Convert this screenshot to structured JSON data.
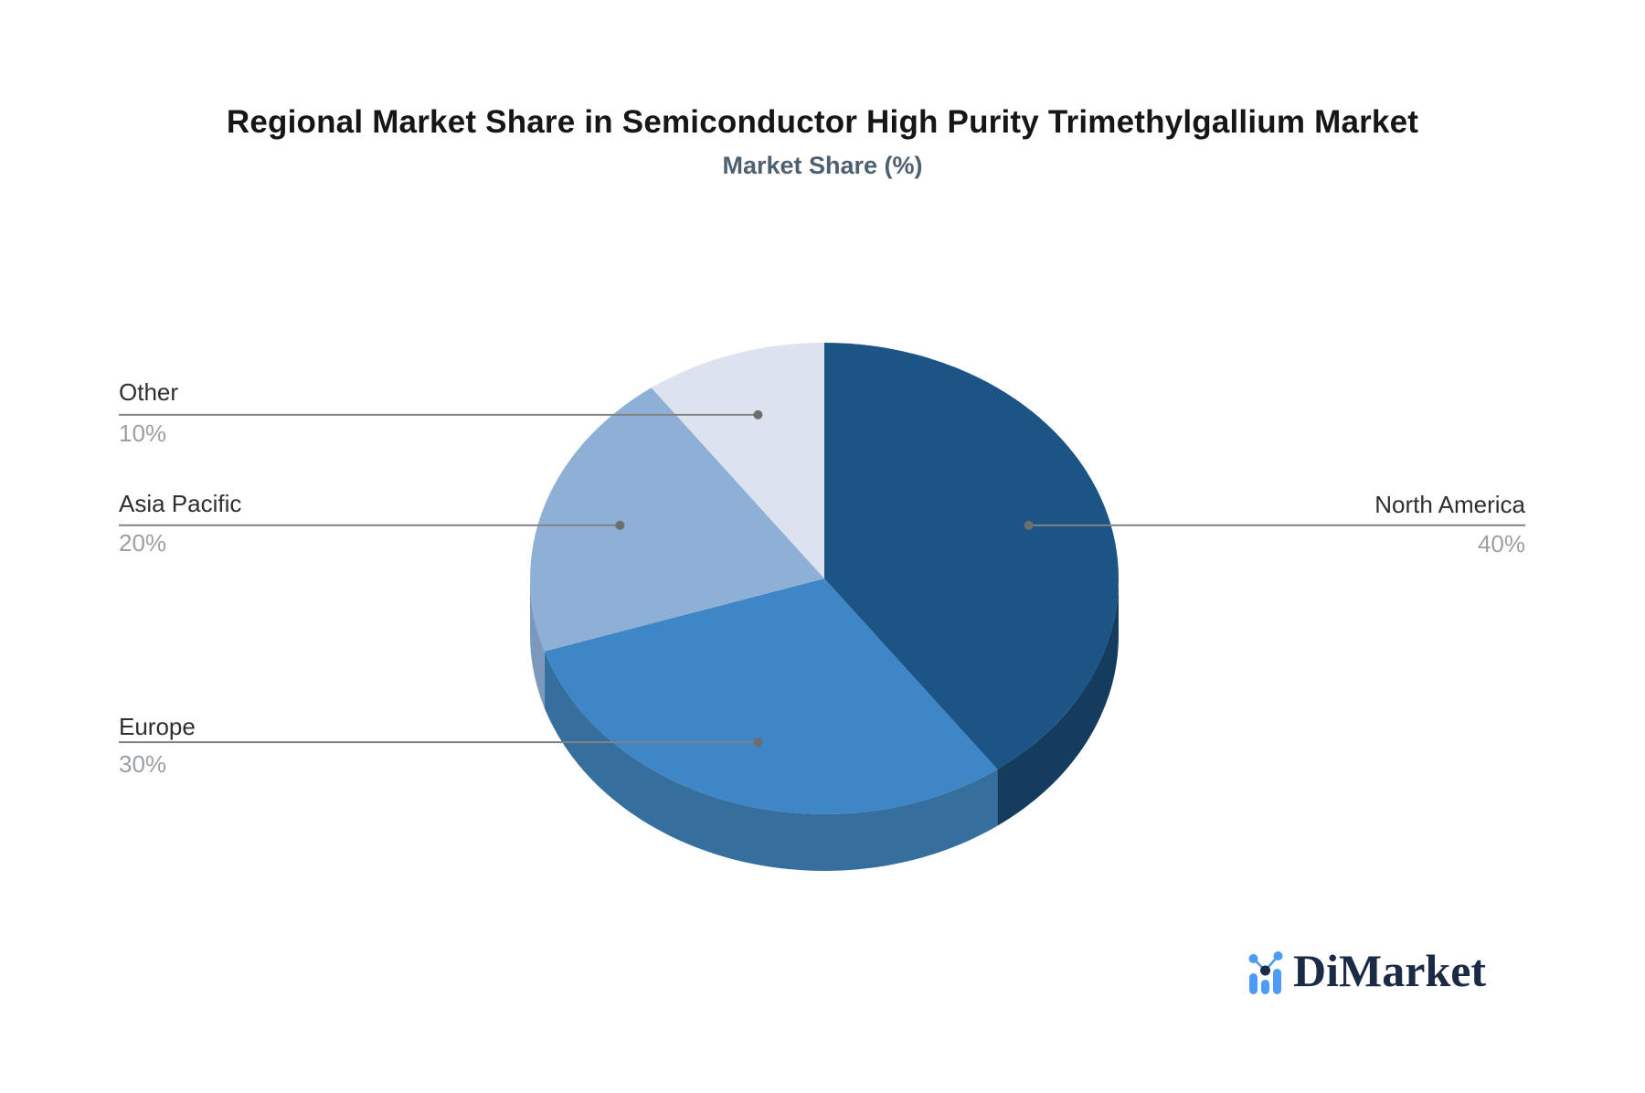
{
  "chart_data": {
    "type": "pie",
    "title": "Regional Market Share in Semiconductor High Purity Trimethylgallium Market",
    "subtitle": "Market Share (%)",
    "unit": "%",
    "effect": "3d",
    "legend_position": "none",
    "label_style": "leader-lines",
    "start_angle_deg_from_top": 0,
    "direction": "clockwise",
    "segments": [
      {
        "label": "North America",
        "value": 40,
        "display": "40%",
        "color": "#1b5485",
        "side_color": "#133c5e",
        "label_side": "right"
      },
      {
        "label": "Europe",
        "value": 30,
        "display": "30%",
        "color": "#3e86c6",
        "side_color": "#356f9e",
        "label_side": "left"
      },
      {
        "label": "Asia Pacific",
        "value": 20,
        "display": "20%",
        "color": "#8fb0d6",
        "side_color": "#7b99bd",
        "label_side": "left"
      },
      {
        "label": "Other",
        "value": 10,
        "display": "10%",
        "color": "#dde3ee",
        "side_color": "#c6d0e0",
        "label_side": "left"
      }
    ],
    "leader_line_color": "#828282",
    "leader_dot_color": "#6e6e6e"
  },
  "brand": {
    "name": "DiMarket",
    "icon": "mini-bar-line-chart-icon",
    "icon_color": "#4d9bf5",
    "text_color": "#1b2b45"
  }
}
